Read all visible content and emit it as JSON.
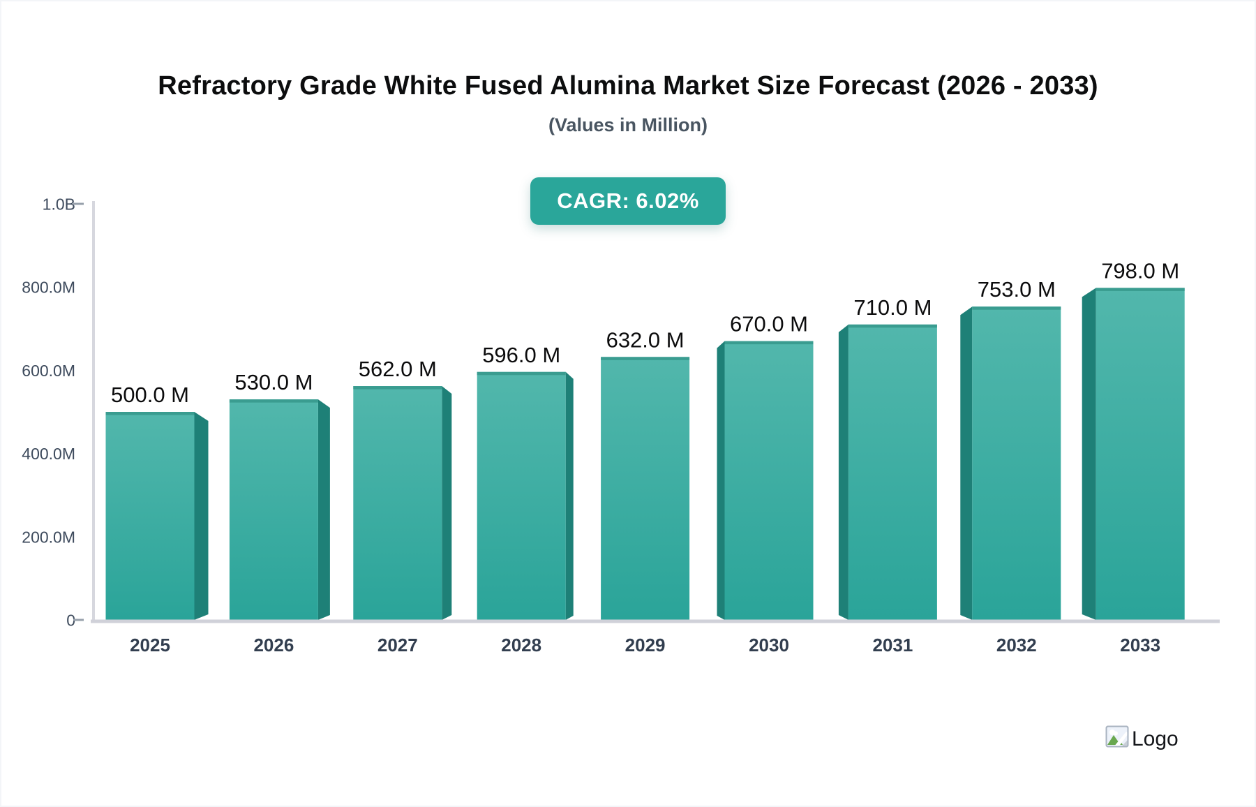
{
  "title": "Refractory Grade White Fused Alumina Market Size Forecast (2026 - 2033)",
  "subtitle": "(Values in Million)",
  "cagr_badge": "CAGR: 6.02%",
  "logo": {
    "alt_text": "Logo"
  },
  "chart_data": {
    "type": "bar",
    "title": "Refractory Grade White Fused Alumina Market Size Forecast (2026 - 2033)",
    "subtitle": "(Values in Million)",
    "unit": "Million USD",
    "categories": [
      "2025",
      "2026",
      "2027",
      "2028",
      "2029",
      "2030",
      "2031",
      "2032",
      "2033"
    ],
    "values": [
      500,
      530,
      562,
      596,
      632,
      670,
      710,
      753,
      798
    ],
    "value_labels": [
      "500.0 M",
      "530.0 M",
      "562.0 M",
      "596.0 M",
      "632.0 M",
      "670.0 M",
      "710.0 M",
      "753.0 M",
      "798.0 M"
    ],
    "xlabel": "",
    "ylabel": "",
    "ylim": [
      0,
      1000
    ],
    "grid": false,
    "legend": "none",
    "yaxis_ticks": [
      {
        "label": "0",
        "value": 0,
        "tick": true
      },
      {
        "label": "200.0M",
        "value": 200,
        "tick": false
      },
      {
        "label": "400.0M",
        "value": 400,
        "tick": false
      },
      {
        "label": "600.0M",
        "value": 600,
        "tick": false
      },
      {
        "label": "800.0M",
        "value": 800,
        "tick": false
      },
      {
        "label": "1.0B",
        "value": 1000,
        "tick": true
      }
    ],
    "colors": {
      "bar_face_top": "#52b7ac",
      "bar_face_bottom": "#2aa499",
      "bar_side": "#1e8077",
      "bar_top_edge": "#3a9c90",
      "axis_line": "#d6d7de",
      "baseline": "#d0d1d9",
      "tick_mark": "#97a0ab",
      "y_label": "#3d4a5c",
      "x_label": "#323e4f",
      "value_label": "#0b0b0c",
      "badge_bg": "#2aa69a",
      "badge_text": "#ffffff"
    }
  }
}
